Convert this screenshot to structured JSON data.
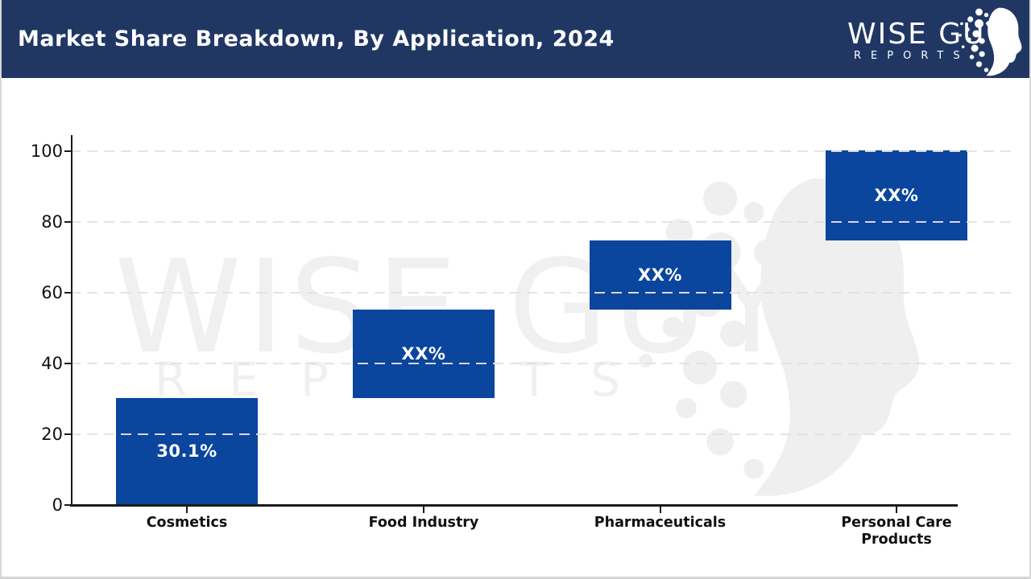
{
  "header": {
    "title": "Market Share Breakdown, By Application, 2024",
    "logo_line1": "WISE GUY",
    "logo_line2": "REPORTS"
  },
  "watermark": {
    "line1": "WISE GUY",
    "line2": "REPORTS"
  },
  "colors": {
    "header_bg": "#203764",
    "bar": "#0a459e",
    "bar_label": "#ffffff",
    "gridline": "#e2e2e2",
    "axis": "#1a1a1a",
    "watermark": "#f0f0f1"
  },
  "chart_data": {
    "type": "bar",
    "variant": "waterfall",
    "title": "Market Share Breakdown, By Application, 2024",
    "categories": [
      "Cosmetics",
      "Food Industry",
      "Pharmaceuticals",
      "Personal Care Products"
    ],
    "segments": [
      {
        "category": "Cosmetics",
        "start": 0,
        "end": 30.1,
        "label": "30.1%"
      },
      {
        "category": "Food Industry",
        "start": 30.1,
        "end": 55.0,
        "label": "XX%"
      },
      {
        "category": "Pharmaceuticals",
        "start": 55.0,
        "end": 74.5,
        "label": "XX%"
      },
      {
        "category": "Personal Care Products",
        "start": 74.5,
        "end": 100,
        "label": "XX%"
      }
    ],
    "y_ticks": [
      0,
      20,
      40,
      60,
      80,
      100
    ],
    "ylim": [
      0,
      105
    ],
    "xlabel": "",
    "ylabel": "",
    "grid": "horizontal-dashed",
    "legend": "none"
  }
}
